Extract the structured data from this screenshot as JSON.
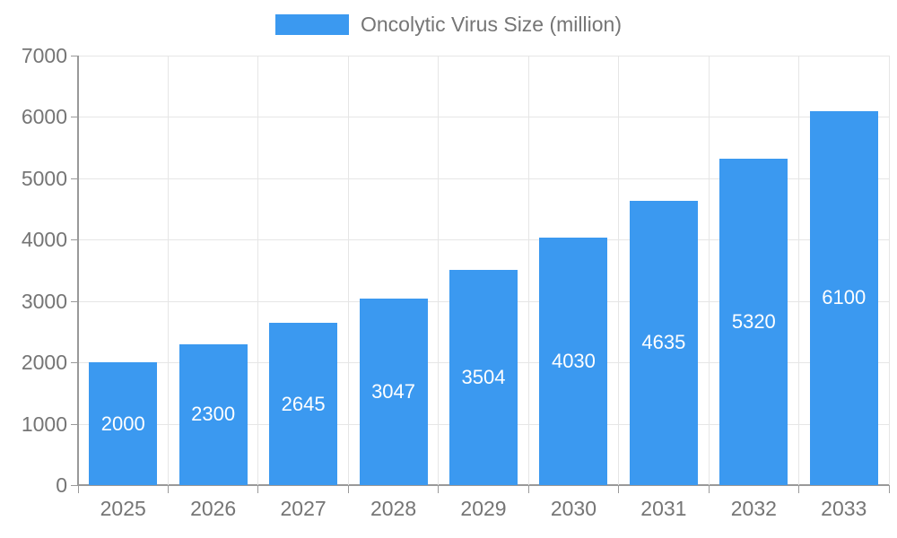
{
  "chart_data": {
    "type": "bar",
    "title": "Oncolytic Virus Size (million)",
    "legend_position": "top",
    "categories": [
      "2025",
      "2026",
      "2027",
      "2028",
      "2029",
      "2030",
      "2031",
      "2032",
      "2033"
    ],
    "series": [
      {
        "name": "Oncolytic Virus Size (million)",
        "values": [
          2000,
          2300,
          2645,
          3047,
          3504,
          4030,
          4635,
          5320,
          6100
        ]
      }
    ],
    "value_labels": [
      "2000",
      "2300",
      "2645",
      "3047",
      "3504",
      "4030",
      "4635",
      "5320",
      "6100"
    ],
    "xlabel": "",
    "ylabel": "",
    "ylim": [
      0,
      7000
    ],
    "ytick_step": 1000,
    "ytick_labels": [
      "0",
      "1000",
      "2000",
      "3000",
      "4000",
      "5000",
      "6000",
      "7000"
    ],
    "grid": true,
    "colors": {
      "bar": "#3B99F0",
      "grid": "#E6E6E6",
      "axis": "#999999",
      "tick_text": "#757575",
      "legend_text": "#757575",
      "value_label_text": "#FFFFFF"
    }
  }
}
